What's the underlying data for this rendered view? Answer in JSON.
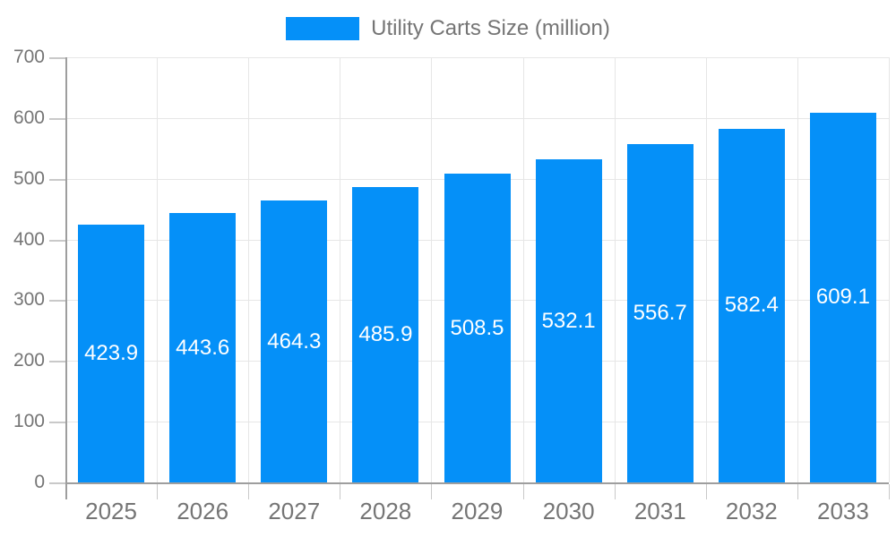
{
  "chart_data": {
    "type": "bar",
    "title": "Utility Carts Size (million)",
    "legend": {
      "position": "top",
      "label": "Utility Carts Size (million)"
    },
    "categories": [
      "2025",
      "2026",
      "2027",
      "2028",
      "2029",
      "2030",
      "2031",
      "2032",
      "2033"
    ],
    "series": [
      {
        "name": "Utility Carts Size (million)",
        "values": [
          423.9,
          443.6,
          464.3,
          485.9,
          508.5,
          532.1,
          556.7,
          582.4,
          609.1
        ]
      }
    ],
    "value_labels": [
      "423.9",
      "443.6",
      "464.3",
      "485.9",
      "508.5",
      "532.1",
      "556.7",
      "582.4",
      "609.1"
    ],
    "xlabel": "",
    "ylabel": "",
    "ylim": [
      0,
      700
    ],
    "ytick_step": 100,
    "yticks": [
      "0",
      "100",
      "200",
      "300",
      "400",
      "500",
      "600",
      "700"
    ],
    "grid": "on",
    "value_label_position": "inside-center",
    "colors": {
      "bar": "#0590F8",
      "axis_label": "#757575",
      "legend_text": "#757575",
      "grid": "#E6E6E6",
      "axis_line": "#9E9E9E",
      "tick": "#C9C9C9",
      "value_label": "#FFFFFF",
      "background": "#FFFFFF"
    }
  }
}
